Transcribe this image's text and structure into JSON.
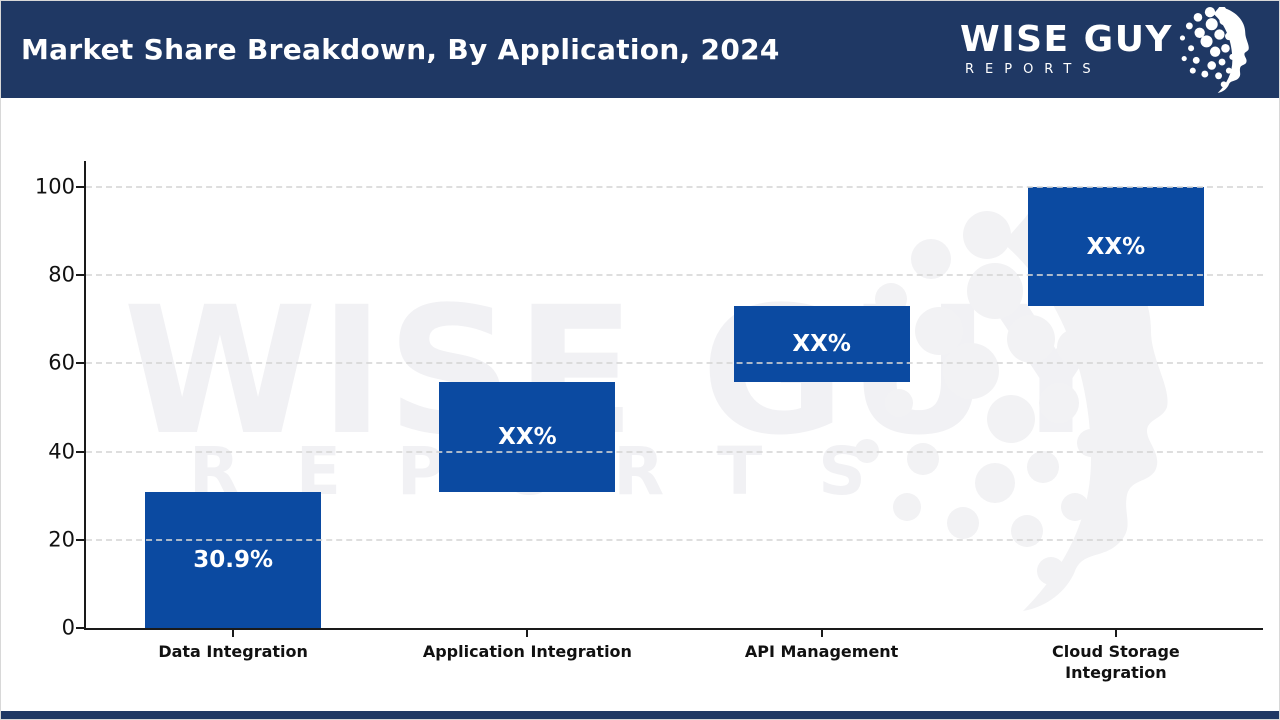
{
  "header": {
    "title": "Market Share Breakdown, By Application, 2024",
    "bg_color": "#1f3864",
    "logo": {
      "line1": "WISE GUY",
      "line2": "REPORTS",
      "face_icon": "dotted-head-profile"
    }
  },
  "watermark": {
    "line1": "WISE GUY",
    "line2": "REPORTS"
  },
  "chart_data": {
    "type": "bar",
    "subtype": "waterfall",
    "title": "Market Share Breakdown, By Application, 2024",
    "categories": [
      "Data Integration",
      "Application Integration",
      "API Management",
      "Cloud Storage Integration"
    ],
    "segments": [
      {
        "category": "Data Integration",
        "start": 0,
        "end": 30.9,
        "label": "30.9%"
      },
      {
        "category": "Application Integration",
        "start": 30.9,
        "end": 55.7,
        "label": "XX%"
      },
      {
        "category": "API Management",
        "start": 55.7,
        "end": 73.0,
        "label": "XX%"
      },
      {
        "category": "Cloud Storage Integration",
        "start": 73.0,
        "end": 100,
        "label": "XX%"
      }
    ],
    "ylim": [
      0,
      100
    ],
    "yticks": [
      0,
      20,
      40,
      60,
      80,
      100
    ],
    "grid": "horizontal dashed",
    "legend_position": "none",
    "xlabel": "",
    "ylabel": "",
    "bar_color": "#0b4aa1",
    "label_color": "#ffffff",
    "axis_color": "#1a1a1a",
    "gridline_color": "#d6d6d6"
  }
}
